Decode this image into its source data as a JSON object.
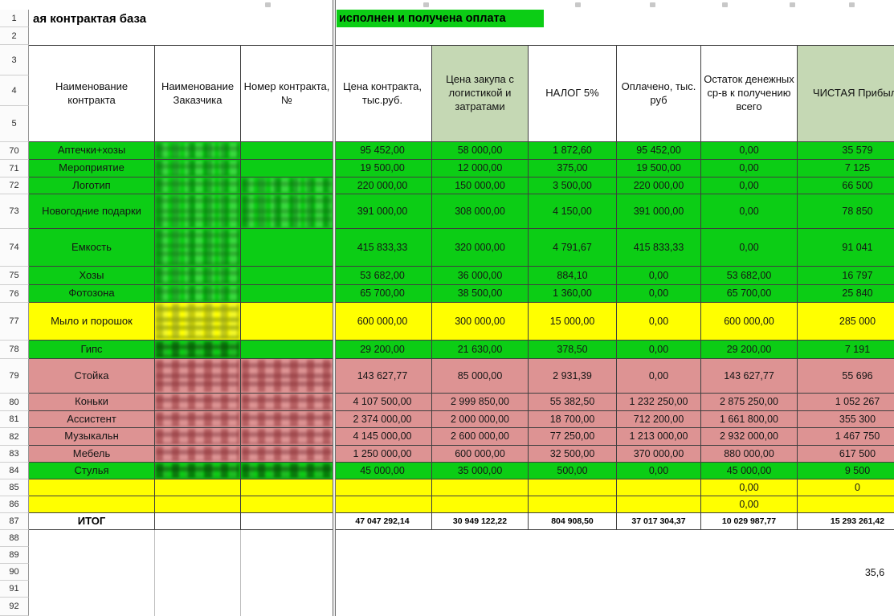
{
  "sheet": {
    "title_fragment": "ая контрактая база",
    "status_banner": "исполнен и получена оплата"
  },
  "gutter_top": [
    "1",
    "2"
  ],
  "gutter_header": [
    "3",
    "4",
    "5"
  ],
  "columns": {
    "name": "Наименование контракта",
    "customer": "Наименование Заказчика",
    "contract_no": "Номер контракта, №",
    "price": "Цена контракта, тыс.руб.",
    "purchase": "Цена закупа с логистикой и затратами",
    "tax": "НАЛОГ 5%",
    "paid": "Оплачено, тыс. руб",
    "balance": "Остаток денежных ср-в к получению всего",
    "profit": "ЧИСТАЯ Прибыль"
  },
  "rows": [
    {
      "n": "70",
      "name": "Аптечки+хозы",
      "color": "green",
      "h": 22,
      "price": "95 452,00",
      "purchase": "58 000,00",
      "tax": "1 872,60",
      "paid": "95 452,00",
      "balance": "0,00",
      "profit": "35 579",
      "redact_b": "m-green",
      "redact_c": ""
    },
    {
      "n": "71",
      "name": "Мероприятие",
      "color": "green",
      "h": 22,
      "price": "19 500,00",
      "purchase": "12 000,00",
      "tax": "375,00",
      "paid": "19 500,00",
      "balance": "0,00",
      "profit": "7 125",
      "redact_b": "m-green",
      "redact_c": ""
    },
    {
      "n": "72",
      "name": "Логотип",
      "color": "green",
      "h": 21,
      "price": "220 000,00",
      "purchase": "150 000,00",
      "tax": "3 500,00",
      "paid": "220 000,00",
      "balance": "0,00",
      "profit": "66 500",
      "redact_b": "m-green",
      "redact_c": "m-green"
    },
    {
      "n": "73",
      "name": "Новогодние подарки",
      "color": "green",
      "h": 43,
      "price": "391 000,00",
      "purchase": "308 000,00",
      "tax": "4 150,00",
      "paid": "391 000,00",
      "balance": "0,00",
      "profit": "78 850",
      "redact_b": "m-green",
      "redact_c": "m-green"
    },
    {
      "n": "74",
      "name": "Емкость",
      "color": "green",
      "h": 47,
      "price": "415 833,33",
      "purchase": "320 000,00",
      "tax": "4 791,67",
      "paid": "415 833,33",
      "balance": "0,00",
      "profit": "91 041",
      "redact_b": "m-green",
      "redact_c": ""
    },
    {
      "n": "75",
      "name": "Хозы",
      "color": "green",
      "h": 23,
      "price": "53 682,00",
      "purchase": "36 000,00",
      "tax": "884,10",
      "paid": "0,00",
      "balance": "53 682,00",
      "profit": "16 797",
      "redact_b": "m-green",
      "redact_c": ""
    },
    {
      "n": "76",
      "name": "Фотозона",
      "color": "green",
      "h": 22,
      "price": "65 700,00",
      "purchase": "38 500,00",
      "tax": "1 360,00",
      "paid": "0,00",
      "balance": "65 700,00",
      "profit": "25 840",
      "redact_b": "m-green",
      "redact_c": ""
    },
    {
      "n": "77",
      "name": "Мыло и порошок",
      "color": "yellow",
      "h": 47,
      "price": "600 000,00",
      "purchase": "300 000,00",
      "tax": "15 000,00",
      "paid": "0,00",
      "balance": "600 000,00",
      "profit": "285 000",
      "redact_b": "m-olive",
      "redact_c": ""
    },
    {
      "n": "78",
      "name": "Гипс",
      "color": "green",
      "h": 23,
      "price": "29 200,00",
      "purchase": "21 630,00",
      "tax": "378,50",
      "paid": "0,00",
      "balance": "29 200,00",
      "profit": "7 191",
      "redact_b": "m-darkgreen",
      "redact_c": ""
    },
    {
      "n": "79",
      "name": "Стойка",
      "color": "pink",
      "h": 43,
      "price": "143 627,77",
      "purchase": "85 000,00",
      "tax": "2 931,39",
      "paid": "0,00",
      "balance": "143 627,77",
      "profit": "55 696",
      "redact_b": "m-pink",
      "redact_c": "m-pink"
    },
    {
      "n": "80",
      "name": "Коньки",
      "color": "pink",
      "h": 22,
      "price": "4 107 500,00",
      "purchase": "2 999 850,00",
      "tax": "55 382,50",
      "paid": "1 232 250,00",
      "balance": "2 875 250,00",
      "profit": "1 052 267",
      "redact_b": "m-pink",
      "redact_c": "m-pink"
    },
    {
      "n": "81",
      "name": "Ассистент",
      "color": "pink",
      "h": 21,
      "price": "2 374 000,00",
      "purchase": "2 000 000,00",
      "tax": "18 700,00",
      "paid": "712 200,00",
      "balance": "1 661 800,00",
      "profit": "355 300",
      "redact_b": "m-pink",
      "redact_c": "m-pink"
    },
    {
      "n": "82",
      "name": "Музыкальн",
      "color": "pink",
      "h": 22,
      "price": "4 145 000,00",
      "purchase": "2 600 000,00",
      "tax": "77 250,00",
      "paid": "1 213 000,00",
      "balance": "2 932 000,00",
      "profit": "1 467 750",
      "redact_b": "m-pink",
      "redact_c": "m-pink"
    },
    {
      "n": "83",
      "name": "Мебель",
      "color": "pink",
      "h": 21,
      "price": "1 250 000,00",
      "purchase": "600 000,00",
      "tax": "32 500,00",
      "paid": "370 000,00",
      "balance": "880 000,00",
      "profit": "617 500",
      "redact_b": "m-pink",
      "redact_c": "m-pink"
    },
    {
      "n": "84",
      "name": "Стулья",
      "color": "green",
      "h": 21,
      "price": "45 000,00",
      "purchase": "35 000,00",
      "tax": "500,00",
      "paid": "0,00",
      "balance": "45 000,00",
      "profit": "9 500",
      "redact_b": "m-darkgreen",
      "redact_c": "m-darkgreen"
    },
    {
      "n": "85",
      "name": "",
      "color": "yellow",
      "h": 21,
      "price": "",
      "purchase": "",
      "tax": "",
      "paid": "",
      "balance": "0,00",
      "profit": "0",
      "redact_b": "",
      "redact_c": ""
    },
    {
      "n": "86",
      "name": "",
      "color": "yellow",
      "h": 21,
      "price": "",
      "purchase": "",
      "tax": "",
      "paid": "",
      "balance": "0,00",
      "profit": "",
      "redact_b": "",
      "redact_c": ""
    }
  ],
  "totals": {
    "n": "87",
    "label": "ИТОГ",
    "customer": "",
    "contract_no": "",
    "price": "47 047 292,14",
    "purchase": "30 949 122,22",
    "tax": "804 908,50",
    "paid": "37 017 304,37",
    "balance": "10 029 987,77",
    "profit": "15 293 261,42"
  },
  "bottom_rows": [
    {
      "n": "88",
      "value": ""
    },
    {
      "n": "89",
      "value": ""
    },
    {
      "n": "90",
      "value": "35,6"
    },
    {
      "n": "91",
      "value": ""
    },
    {
      "n": "92",
      "value": ""
    }
  ]
}
